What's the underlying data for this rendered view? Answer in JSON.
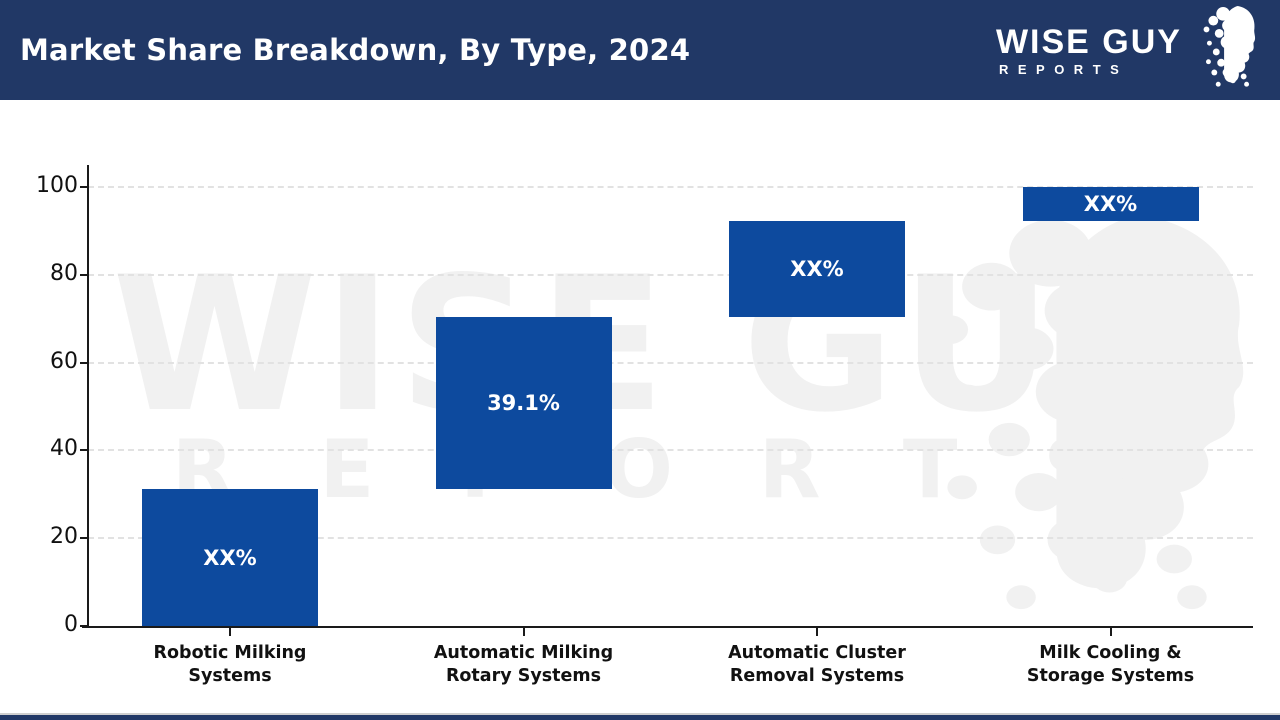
{
  "header": {
    "title": "Market Share Breakdown, By Type, 2024",
    "logo_line1": "WISE GUY",
    "logo_line2": "REPORTS"
  },
  "watermark": {
    "line1": "WISE GUY",
    "line2": "REPORTS"
  },
  "chart_data": {
    "type": "bar",
    "subtype": "stacked-waterfall",
    "title": "Market Share Breakdown, By Type, 2024",
    "categories": [
      [
        "Robotic Milking",
        "Systems"
      ],
      [
        "Automatic Milking",
        "Rotary Systems"
      ],
      [
        "Automatic Cluster",
        "Removal Systems"
      ],
      [
        "Milk Cooling &",
        "Storage Systems"
      ]
    ],
    "segments": [
      {
        "category": "Robotic Milking Systems",
        "start": 0,
        "end": 31.2,
        "label": "XX%"
      },
      {
        "category": "Automatic Milking Rotary Systems",
        "start": 31.2,
        "end": 70.3,
        "label": "39.1%",
        "value": 39.1
      },
      {
        "category": "Automatic Cluster Removal Systems",
        "start": 70.3,
        "end": 92.3,
        "label": "XX%"
      },
      {
        "category": "Milk Cooling & Storage Systems",
        "start": 92.3,
        "end": 100,
        "label": "XX%"
      }
    ],
    "ylim": [
      0,
      100
    ],
    "yticks": [
      0,
      20,
      40,
      60,
      80,
      100
    ],
    "grid": "horizontal-dashed",
    "legend": "none",
    "xlabel": "",
    "ylabel": ""
  },
  "colors": {
    "header_bg": "#213866",
    "footer_bg": "#213866",
    "bar": "#0d4a9e",
    "bar_label": "#ffffff",
    "watermark": "#f1f1f1",
    "grid": "#e2e2e2",
    "axis": "#1a1a1a"
  }
}
